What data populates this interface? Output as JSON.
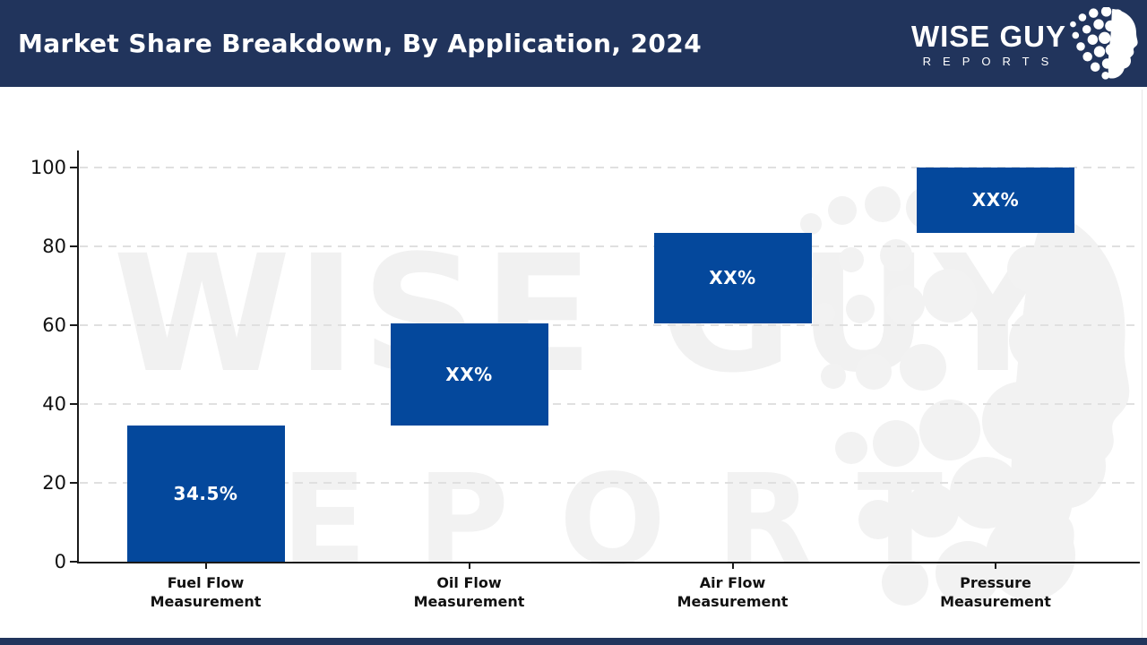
{
  "header": {
    "title": "Market Share Breakdown, By Application, 2024",
    "logo": {
      "brand_top": "WISE GUY",
      "brand_bottom": "REPORTS"
    }
  },
  "watermark": {
    "line1": "WISE GUY",
    "line2": "REPORTS"
  },
  "colors": {
    "header_bg": "#21345c",
    "footer_bg": "#21345c",
    "bar_fill": "#04489c",
    "bar_label_text": "#ffffff",
    "gridline": "#e0e0e0",
    "axis": "#1a1a1a",
    "watermark": "#f1f1f1"
  },
  "chart_data": {
    "type": "bar",
    "subtype": "waterfall-stacked-breakdown",
    "title": "Market Share Breakdown, By Application, 2024",
    "xlabel": "",
    "ylabel": "",
    "ylim": [
      0,
      100
    ],
    "yticks": [
      0,
      20,
      40,
      60,
      80,
      100
    ],
    "grid": "horizontal dashed",
    "legend": "none",
    "categories": [
      "Fuel Flow Measurement",
      "Oil Flow Measurement",
      "Air Flow Measurement",
      "Pressure Measurement"
    ],
    "category_lines": [
      [
        "Fuel Flow",
        "Measurement"
      ],
      [
        "Oil Flow",
        "Measurement"
      ],
      [
        "Air Flow",
        "Measurement"
      ],
      [
        "Pressure",
        "Measurement"
      ]
    ],
    "segments": [
      {
        "category": "Fuel Flow Measurement",
        "start": 0,
        "end": 34.5,
        "value": 34.5,
        "label": "34.5%"
      },
      {
        "category": "Oil Flow Measurement",
        "start": 34.5,
        "end": 60.5,
        "value": 26.0,
        "label": "XX%"
      },
      {
        "category": "Air Flow Measurement",
        "start": 60.5,
        "end": 83.5,
        "value": 23.0,
        "label": "XX%"
      },
      {
        "category": "Pressure Measurement",
        "start": 83.5,
        "end": 100,
        "value": 16.5,
        "label": "XX%"
      }
    ]
  }
}
